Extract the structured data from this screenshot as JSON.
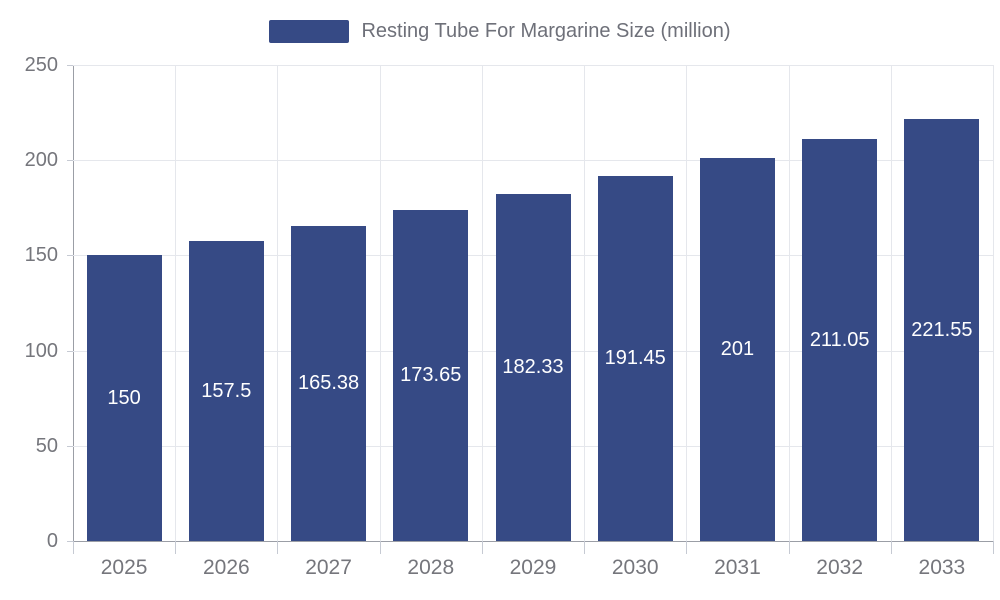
{
  "chart_data": {
    "type": "bar",
    "title": "Resting Tube For Margarine Size (million)",
    "series_name": "Resting Tube For Margarine Size (million)",
    "categories": [
      "2025",
      "2026",
      "2027",
      "2028",
      "2029",
      "2030",
      "2031",
      "2032",
      "2033"
    ],
    "values": [
      150,
      157.5,
      165.38,
      173.65,
      182.33,
      191.45,
      201,
      211.05,
      221.55
    ],
    "value_labels": [
      "150",
      "157.5",
      "165.38",
      "173.65",
      "182.33",
      "191.45",
      "201",
      "211.05",
      "221.55"
    ],
    "xlabel": "",
    "ylabel": "",
    "ylim": [
      0,
      250
    ],
    "y_ticks": [
      0,
      50,
      100,
      150,
      200,
      250
    ],
    "grid": true,
    "legend_position": "top",
    "colors": {
      "bar": "#364a85",
      "axis_line": "#9b9ea6",
      "gridline": "#e5e7ec",
      "tick_mark": "#c6cad3",
      "tick_text": "#75767c",
      "legend_text": "#6e7079",
      "bar_label": "#ffffff"
    }
  }
}
